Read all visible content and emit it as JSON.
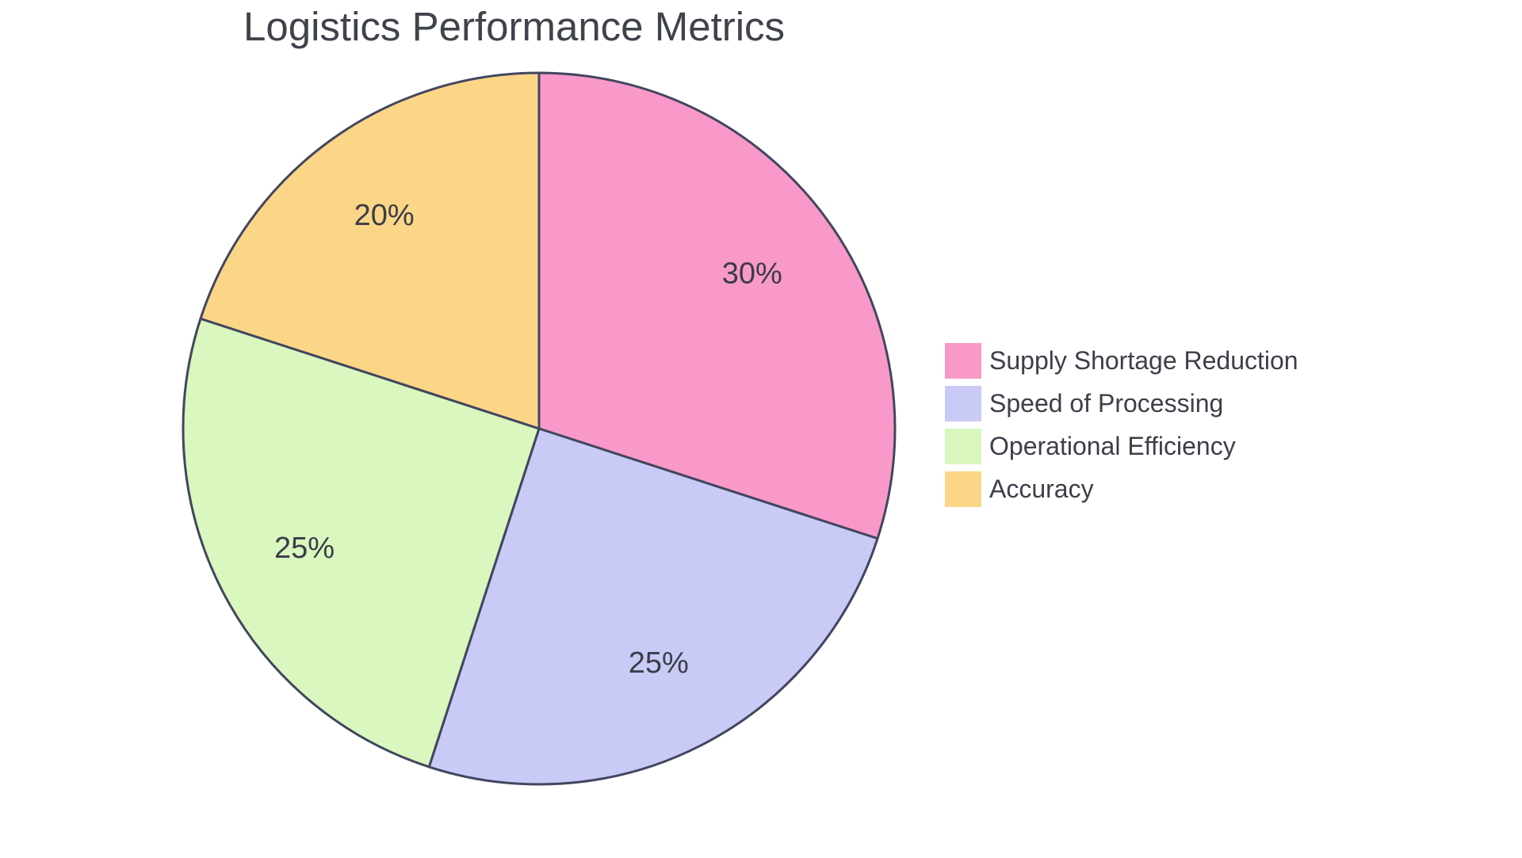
{
  "chart_data": {
    "type": "pie",
    "title": "Logistics Performance Metrics",
    "categories": [
      "Supply Shortage Reduction",
      "Speed of Processing",
      "Operational Efficiency",
      "Accuracy"
    ],
    "values": [
      30,
      25,
      25,
      20
    ],
    "unit": "percent",
    "start_angle_deg": 0,
    "direction": "clockwise",
    "legend_position": "right",
    "grid": false,
    "slices": [
      {
        "label": "Supply Shortage Reduction",
        "value": 30,
        "percent_label": "30%",
        "color": "#F999C9"
      },
      {
        "label": "Speed of Processing",
        "value": 25,
        "percent_label": "25%",
        "color": "#C9CBF6"
      },
      {
        "label": "Operational Efficiency",
        "value": 25,
        "percent_label": "25%",
        "color": "#D9F7BE"
      },
      {
        "label": "Accuracy",
        "value": 20,
        "percent_label": "20%",
        "color": "#FBD687"
      }
    ],
    "stroke_color": "#42465E",
    "label_color": "#3A3D47",
    "title_color": "#3F434B",
    "legend_text_color": "#3C3F49",
    "background_color": "#FFFFFF"
  }
}
